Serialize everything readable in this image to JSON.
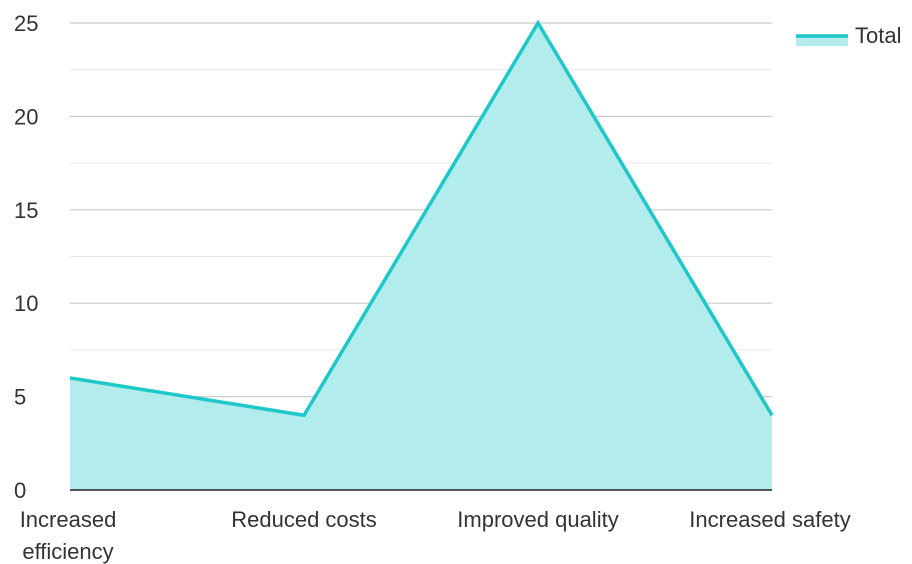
{
  "chart_data": {
    "type": "area",
    "categories": [
      "Increased efficiency",
      "Reduced costs",
      "Improved quality",
      "Increased safety"
    ],
    "series": [
      {
        "name": "Total",
        "values": [
          6,
          4,
          25,
          4
        ]
      }
    ],
    "ylim": [
      0,
      25
    ],
    "yticks": [
      0,
      5,
      10,
      15,
      20,
      25
    ],
    "grid": true,
    "minor_grid": true,
    "legend_position": "top-right",
    "colors": {
      "line": "#1fc8c8",
      "fill": "#b2ecec",
      "grid": "#cccccc",
      "minor_grid": "#e6e6e6",
      "axis": "#222222",
      "text": "#333333"
    }
  }
}
